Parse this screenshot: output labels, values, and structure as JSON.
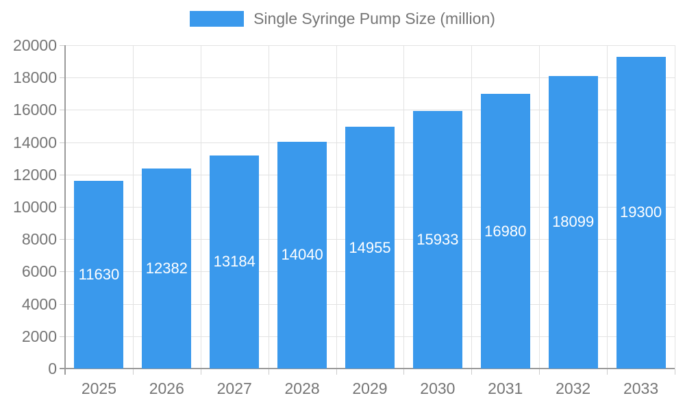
{
  "legend": {
    "label": "Single Syringe Pump Size (million)",
    "swatch_color": "#3a99ec"
  },
  "chart_data": {
    "type": "bar",
    "title": "Single Syringe Pump Size (million)",
    "categories": [
      "2025",
      "2026",
      "2027",
      "2028",
      "2029",
      "2030",
      "2031",
      "2032",
      "2033"
    ],
    "values": [
      11630,
      12382,
      13184,
      14040,
      14955,
      15933,
      16980,
      18099,
      19300
    ],
    "value_labels": [
      "11630",
      "12382",
      "13184",
      "14040",
      "14955",
      "15933",
      "16980",
      "18099",
      "19300"
    ],
    "xlabel": "",
    "ylabel": "",
    "ylim": [
      0,
      20000
    ],
    "ytick_step": 2000,
    "ytick_labels": [
      "0",
      "2000",
      "4000",
      "6000",
      "8000",
      "10000",
      "12000",
      "14000",
      "16000",
      "18000",
      "20000"
    ],
    "grid": true,
    "legend_position": "top",
    "colors": {
      "bar": "#3a99ec",
      "value_label": "#ffffff",
      "axis_text": "#757575",
      "gridline": "#e2e2e2",
      "axis_line": "#9a9a9a",
      "tick": "#cccccc",
      "background": "#ffffff"
    }
  }
}
